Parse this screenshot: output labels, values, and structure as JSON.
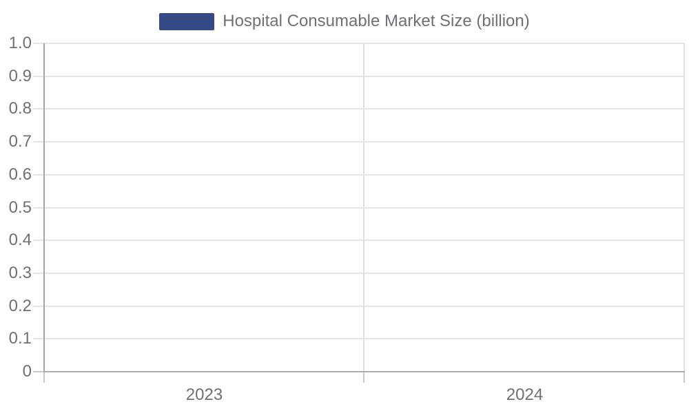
{
  "legend": {
    "items": [
      {
        "label": "Hospital Consumable Market Size (billion)",
        "color": "#364a85"
      }
    ]
  },
  "chart_data": {
    "type": "bar",
    "title": "Hospital Consumable Market Size (billion)",
    "categories": [
      "2023",
      "2024"
    ],
    "series": [
      {
        "name": "Hospital Consumable Market Size (billion)",
        "color": "#364a85",
        "values": [
          null,
          null
        ]
      }
    ],
    "xlabel": "",
    "ylabel": "",
    "ylim": [
      0,
      1
    ],
    "yticks": [
      "0",
      "0.1",
      "0.2",
      "0.3",
      "0.4",
      "0.5",
      "0.6",
      "0.7",
      "0.8",
      "0.9",
      "1.0"
    ],
    "grid": true,
    "legend_position": "top"
  },
  "colors": {
    "accent": "#364a85",
    "text": "#6e7079",
    "grid_line": "#e4e4e7",
    "category_line": "#e0e0e3",
    "axis_line_y": "#a4a4a7",
    "axis_line_x": "#acacaf",
    "tick": "#c9c9cc",
    "background": "#ffffff"
  }
}
